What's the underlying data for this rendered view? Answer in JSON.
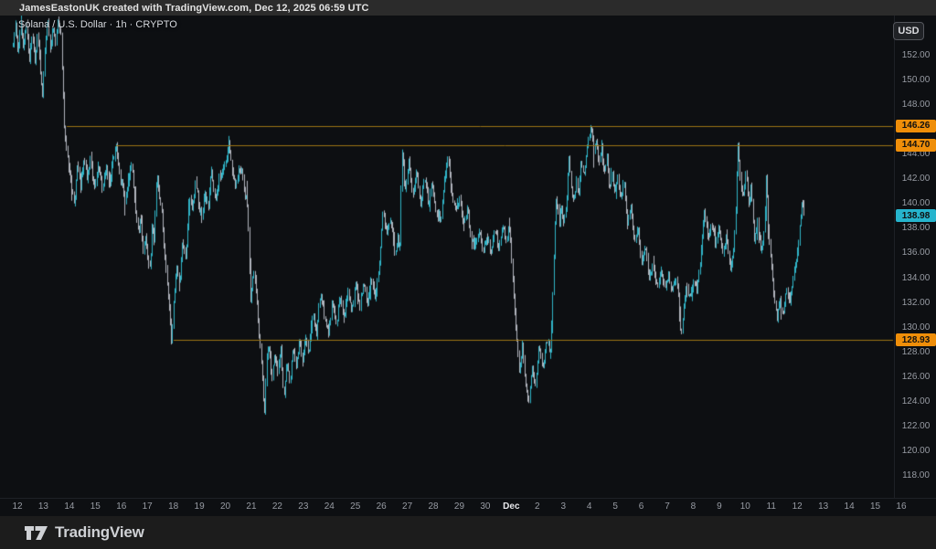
{
  "header": {
    "attribution": "JamesEastonUK created with TradingView.com, Dec 12, 2025 06:59 UTC"
  },
  "chart": {
    "legend": "Solana / U.S. Dollar · 1h · CRYPTO",
    "symbol": "Solana / U.S. Dollar",
    "interval": "1h",
    "exchange": "CRYPTO"
  },
  "axis": {
    "currency_button": "USD"
  },
  "footer": {
    "logo_text": "TradingView"
  },
  "chart_data": {
    "type": "candlestick",
    "title": "Solana / U.S. Dollar · 1h · CRYPTO",
    "x_axis": {
      "unit": "day (Nov 12 2025 = index 0)",
      "labels": [
        "12",
        "13",
        "14",
        "15",
        "16",
        "17",
        "18",
        "19",
        "20",
        "21",
        "22",
        "23",
        "24",
        "25",
        "26",
        "27",
        "28",
        "29",
        "30",
        "Dec",
        "2",
        "3",
        "4",
        "5",
        "6",
        "7",
        "8",
        "9",
        "10",
        "11",
        "12",
        "13",
        "14",
        "15",
        "16"
      ],
      "highlighted_label": "Dec"
    },
    "y_axis": {
      "unit": "USD",
      "top_price": 152,
      "ticks": [
        {
          "label": "152.00",
          "value": 152
        },
        {
          "label": "150.00",
          "value": 150
        },
        {
          "label": "148.00",
          "value": 148
        },
        {
          "label": "144.00",
          "value": 144
        },
        {
          "label": "142.00",
          "value": 142
        },
        {
          "label": "140.00",
          "value": 140
        },
        {
          "label": "138.00",
          "value": 138
        },
        {
          "label": "136.00",
          "value": 136
        },
        {
          "label": "134.00",
          "value": 134
        },
        {
          "label": "132.00",
          "value": 132
        },
        {
          "label": "130.00",
          "value": 130
        },
        {
          "label": "128.00",
          "value": 128
        },
        {
          "label": "126.00",
          "value": 126
        },
        {
          "label": "124.00",
          "value": 124
        },
        {
          "label": "122.00",
          "value": 122
        },
        {
          "label": "120.00",
          "value": 120
        },
        {
          "label": "118.00",
          "value": 118
        }
      ]
    },
    "levels": [
      {
        "label": "146.26",
        "value": 146.26,
        "start_day": 1.9
      },
      {
        "label": "144.70",
        "value": 144.7,
        "start_day": 3.8
      },
      {
        "label": "128.93",
        "value": 128.93,
        "start_day": 6.01
      }
    ],
    "last_price": {
      "label": "138.98",
      "value": 138.98
    },
    "colors": {
      "up": "#30b6c9",
      "down": "#b2b5be",
      "level_line": "#9c7414",
      "level_badge": "#ef8e09",
      "last_badge": "#26b4cd",
      "background": "#0d0f12"
    },
    "anchors_day_price": [
      [
        -0.18,
        152.5
      ],
      [
        -0.08,
        154.9
      ],
      [
        0.02,
        151.9
      ],
      [
        0.12,
        154.6
      ],
      [
        0.22,
        152.2
      ],
      [
        0.32,
        154.9
      ],
      [
        0.44,
        151.4
      ],
      [
        0.56,
        153.9
      ],
      [
        0.66,
        151.1
      ],
      [
        0.76,
        153.6
      ],
      [
        0.86,
        150.9
      ],
      [
        0.96,
        148.6
      ],
      [
        1.06,
        153.0
      ],
      [
        1.16,
        154.9
      ],
      [
        1.26,
        152.4
      ],
      [
        1.36,
        154.6
      ],
      [
        1.46,
        152.9
      ],
      [
        1.56,
        155.0
      ],
      [
        1.66,
        153.9
      ],
      [
        1.79,
        146.3
      ],
      [
        1.87,
        144.7
      ],
      [
        1.95,
        143.4
      ],
      [
        2.06,
        141.6
      ],
      [
        2.18,
        139.9
      ],
      [
        2.3,
        143.2
      ],
      [
        2.42,
        141.3
      ],
      [
        2.56,
        143.9
      ],
      [
        2.68,
        141.9
      ],
      [
        2.8,
        143.6
      ],
      [
        2.94,
        140.9
      ],
      [
        3.1,
        143.2
      ],
      [
        3.26,
        141.2
      ],
      [
        3.42,
        142.9
      ],
      [
        3.54,
        141.5
      ],
      [
        3.66,
        143.3
      ],
      [
        3.8,
        144.65
      ],
      [
        3.92,
        142.2
      ],
      [
        4.04,
        141.3
      ],
      [
        4.14,
        139.9
      ],
      [
        4.26,
        142.0
      ],
      [
        4.38,
        143.3
      ],
      [
        4.52,
        139.9
      ],
      [
        4.64,
        137.6
      ],
      [
        4.74,
        138.9
      ],
      [
        4.82,
        135.6
      ],
      [
        4.92,
        137.2
      ],
      [
        5.02,
        135.3
      ],
      [
        5.1,
        134.9
      ],
      [
        5.18,
        138.5
      ],
      [
        5.26,
        136.9
      ],
      [
        5.34,
        142.3
      ],
      [
        5.44,
        140.9
      ],
      [
        5.54,
        139.3
      ],
      [
        5.64,
        136.2
      ],
      [
        5.74,
        133.9
      ],
      [
        5.84,
        131.3
      ],
      [
        5.92,
        128.95
      ],
      [
        6.02,
        132.5
      ],
      [
        6.12,
        134.9
      ],
      [
        6.22,
        133.3
      ],
      [
        6.34,
        136.9
      ],
      [
        6.47,
        135.4
      ],
      [
        6.62,
        140.6
      ],
      [
        6.72,
        139.2
      ],
      [
        6.84,
        141.9
      ],
      [
        6.96,
        139.9
      ],
      [
        7.08,
        138.7
      ],
      [
        7.2,
        140.9
      ],
      [
        7.32,
        139.6
      ],
      [
        7.44,
        142.7
      ],
      [
        7.54,
        140.9
      ],
      [
        7.64,
        140.3
      ],
      [
        7.76,
        142.2
      ],
      [
        7.9,
        142.9
      ],
      [
        8.02,
        143.7
      ],
      [
        8.13,
        144.8
      ],
      [
        8.26,
        142.2
      ],
      [
        8.4,
        141.4
      ],
      [
        8.52,
        143.1
      ],
      [
        8.62,
        142.6
      ],
      [
        8.74,
        140.9
      ],
      [
        8.85,
        139.8
      ],
      [
        8.96,
        131.9
      ],
      [
        9.06,
        134.8
      ],
      [
        9.16,
        133.2
      ],
      [
        9.26,
        130.2
      ],
      [
        9.38,
        127.2
      ],
      [
        9.49,
        122.7
      ],
      [
        9.58,
        127.3
      ],
      [
        9.68,
        128.6
      ],
      [
        9.78,
        125.6
      ],
      [
        9.88,
        127.9
      ],
      [
        10.0,
        126.4
      ],
      [
        10.12,
        128.3
      ],
      [
        10.23,
        123.9
      ],
      [
        10.35,
        127.3
      ],
      [
        10.47,
        125.4
      ],
      [
        10.6,
        128.3
      ],
      [
        10.72,
        126.6
      ],
      [
        10.84,
        128.9
      ],
      [
        10.96,
        127.2
      ],
      [
        11.08,
        129.3
      ],
      [
        11.2,
        127.7
      ],
      [
        11.35,
        131.0
      ],
      [
        11.5,
        129.4
      ],
      [
        11.65,
        132.9
      ],
      [
        11.8,
        130.9
      ],
      [
        11.95,
        129.4
      ],
      [
        12.1,
        131.9
      ],
      [
        12.25,
        130.2
      ],
      [
        12.4,
        132.5
      ],
      [
        12.55,
        130.7
      ],
      [
        12.7,
        132.9
      ],
      [
        12.85,
        131.2
      ],
      [
        13.0,
        133.4
      ],
      [
        13.15,
        131.6
      ],
      [
        13.3,
        133.6
      ],
      [
        13.45,
        131.9
      ],
      [
        13.6,
        133.9
      ],
      [
        13.75,
        132.2
      ],
      [
        13.9,
        134.5
      ],
      [
        14.05,
        139.6
      ],
      [
        14.2,
        137.3
      ],
      [
        14.35,
        138.9
      ],
      [
        14.5,
        135.9
      ],
      [
        14.62,
        137.1
      ],
      [
        14.7,
        135.8
      ],
      [
        14.78,
        144.5
      ],
      [
        14.9,
        141.2
      ],
      [
        15.05,
        143.4
      ],
      [
        15.2,
        140.3
      ],
      [
        15.35,
        142.7
      ],
      [
        15.5,
        139.9
      ],
      [
        15.65,
        142.3
      ],
      [
        15.8,
        139.9
      ],
      [
        15.95,
        141.6
      ],
      [
        16.1,
        139.2
      ],
      [
        16.28,
        138.7
      ],
      [
        16.42,
        141.9
      ],
      [
        16.56,
        143.8
      ],
      [
        16.7,
        140.9
      ],
      [
        16.85,
        139.4
      ],
      [
        17.0,
        140.4
      ],
      [
        17.15,
        138.2
      ],
      [
        17.3,
        139.4
      ],
      [
        17.45,
        137.2
      ],
      [
        17.6,
        136.6
      ],
      [
        17.75,
        137.9
      ],
      [
        17.9,
        135.9
      ],
      [
        18.05,
        137.4
      ],
      [
        18.2,
        136.1
      ],
      [
        18.35,
        137.9
      ],
      [
        18.5,
        136.4
      ],
      [
        18.65,
        138.2
      ],
      [
        18.8,
        137.0
      ],
      [
        18.9,
        138.2
      ],
      [
        19.0,
        135.5
      ],
      [
        19.1,
        131.9
      ],
      [
        19.2,
        128.9
      ],
      [
        19.3,
        126.4
      ],
      [
        19.42,
        128.6
      ],
      [
        19.52,
        125.8
      ],
      [
        19.65,
        123.6
      ],
      [
        19.78,
        127.1
      ],
      [
        19.9,
        124.9
      ],
      [
        20.05,
        128.4
      ],
      [
        20.2,
        126.4
      ],
      [
        20.35,
        128.9
      ],
      [
        20.5,
        127.9
      ],
      [
        20.57,
        131.5
      ],
      [
        20.64,
        137.0
      ],
      [
        20.72,
        140.8
      ],
      [
        20.82,
        138.2
      ],
      [
        20.92,
        139.9
      ],
      [
        21.02,
        138.4
      ],
      [
        21.12,
        140.2
      ],
      [
        21.2,
        143.9
      ],
      [
        21.3,
        141.0
      ],
      [
        21.4,
        140.3
      ],
      [
        21.5,
        141.7
      ],
      [
        21.58,
        140.5
      ],
      [
        21.68,
        143.5
      ],
      [
        21.8,
        142.0
      ],
      [
        21.92,
        144.6
      ],
      [
        22.0,
        145.4
      ],
      [
        22.07,
        146.5
      ],
      [
        22.16,
        143.9
      ],
      [
        22.26,
        145.1
      ],
      [
        22.36,
        143.3
      ],
      [
        22.46,
        144.6
      ],
      [
        22.56,
        142.3
      ],
      [
        22.66,
        143.8
      ],
      [
        22.76,
        141.2
      ],
      [
        22.86,
        142.5
      ],
      [
        22.96,
        140.9
      ],
      [
        23.08,
        141.9
      ],
      [
        23.2,
        140.3
      ],
      [
        23.32,
        141.9
      ],
      [
        23.46,
        138.3
      ],
      [
        23.58,
        139.9
      ],
      [
        23.72,
        136.9
      ],
      [
        23.86,
        138.1
      ],
      [
        24.0,
        135.3
      ],
      [
        24.14,
        136.6
      ],
      [
        24.28,
        133.8
      ],
      [
        24.44,
        134.9
      ],
      [
        24.6,
        133.1
      ],
      [
        24.76,
        134.5
      ],
      [
        24.9,
        132.9
      ],
      [
        25.04,
        134.2
      ],
      [
        25.18,
        132.9
      ],
      [
        25.34,
        134.0
      ],
      [
        25.44,
        132.3
      ],
      [
        25.52,
        128.8
      ],
      [
        25.62,
        131.8
      ],
      [
        25.72,
        133.3
      ],
      [
        25.86,
        132.1
      ],
      [
        26.0,
        133.9
      ],
      [
        26.14,
        132.9
      ],
      [
        26.28,
        136.0
      ],
      [
        26.42,
        139.2
      ],
      [
        26.56,
        137.2
      ],
      [
        26.7,
        138.4
      ],
      [
        26.84,
        136.6
      ],
      [
        26.98,
        137.9
      ],
      [
        27.12,
        135.9
      ],
      [
        27.26,
        137.4
      ],
      [
        27.42,
        134.4
      ],
      [
        27.55,
        136.4
      ],
      [
        27.63,
        139.5
      ],
      [
        27.7,
        144.8
      ],
      [
        27.8,
        141.9
      ],
      [
        27.92,
        140.4
      ],
      [
        28.02,
        142.9
      ],
      [
        28.12,
        139.9
      ],
      [
        28.22,
        141.4
      ],
      [
        28.34,
        136.9
      ],
      [
        28.46,
        138.4
      ],
      [
        28.6,
        135.9
      ],
      [
        28.72,
        137.7
      ],
      [
        28.8,
        142.5
      ],
      [
        28.9,
        136.9
      ],
      [
        29.0,
        134.9
      ],
      [
        29.1,
        132.4
      ],
      [
        29.2,
        130.4
      ],
      [
        29.32,
        132.2
      ],
      [
        29.45,
        130.7
      ],
      [
        29.58,
        133.2
      ],
      [
        29.7,
        131.9
      ],
      [
        29.82,
        133.9
      ],
      [
        29.95,
        135.4
      ],
      [
        30.05,
        136.9
      ],
      [
        30.15,
        139.9
      ],
      [
        30.22,
        140.2
      ],
      [
        30.27,
        138.98
      ]
    ]
  }
}
